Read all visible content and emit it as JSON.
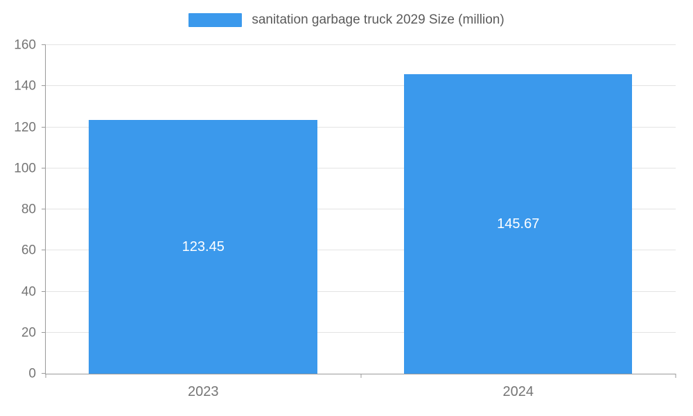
{
  "chart_data": {
    "type": "bar",
    "title": "",
    "legend": "sanitation garbage truck 2029 Size (million)",
    "categories": [
      "2023",
      "2024"
    ],
    "values": [
      123.45,
      145.67
    ],
    "value_labels": [
      "123.45",
      "145.67"
    ],
    "xlabel": "",
    "ylabel": "",
    "ylim": [
      0,
      160
    ],
    "ytick_step": 20,
    "yticks": [
      0,
      20,
      40,
      60,
      80,
      100,
      120,
      140,
      160
    ],
    "grid": true,
    "legend_position": "top",
    "bar_width_fraction": 0.725,
    "colors": {
      "bar": "#3B99EC",
      "value_label": "#ffffff",
      "axis_line": "#999999",
      "gridline": "#e3e3e3",
      "tick_label": "#757575",
      "legend_text": "#5a5a5a",
      "background": "#ffffff"
    }
  }
}
